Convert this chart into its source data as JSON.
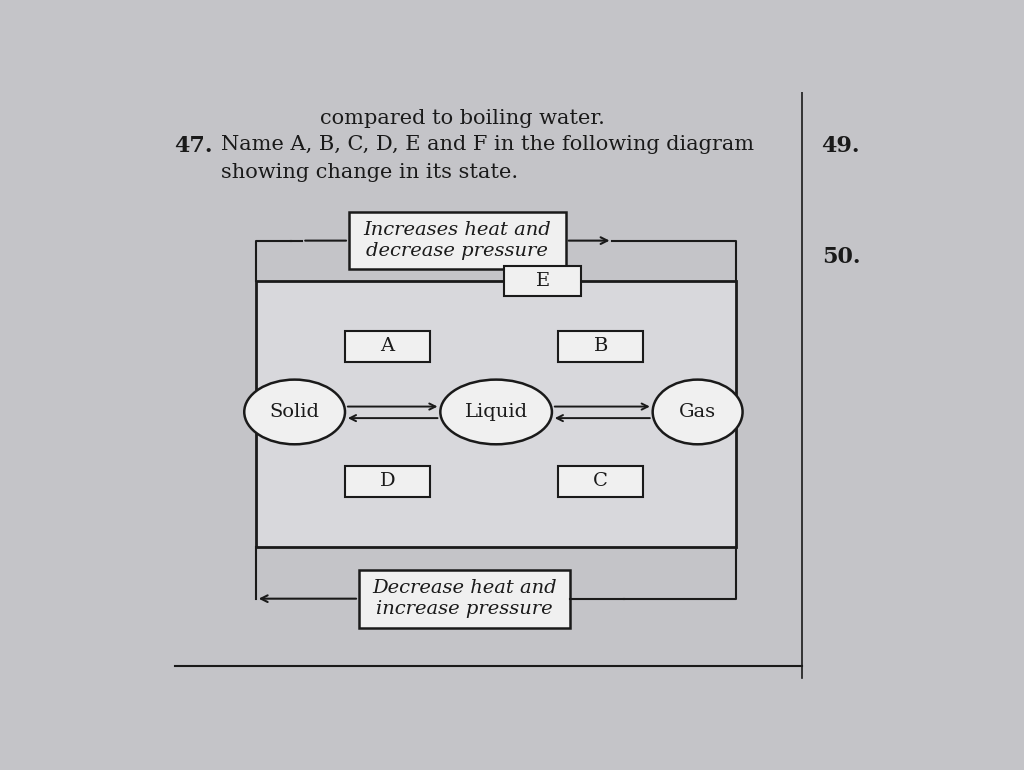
{
  "bg_color": "#c4c4c8",
  "title_line1": "compared to boiling water.",
  "label_47": "47.",
  "title_line2": "Name A, B, C, D, E and F in the following diagram",
  "title_line3": "showing change in its state.",
  "top_box_text": "Increases heat and\ndecrease pressure",
  "bottom_box_text": "Decrease heat and\nincrease pressure",
  "label_A": "A",
  "label_B": "B",
  "label_C": "C",
  "label_D": "D",
  "label_E": "E",
  "label_solid": "Solid",
  "label_liquid": "Liquid",
  "label_gas": "Gas",
  "note_49": "49.",
  "note_50": "50.",
  "box_color": "#f0f0f0",
  "line_color": "#1a1a1a",
  "main_rect_color": "#d8d8dc",
  "font_size_header": 15,
  "font_size_diagram": 13
}
